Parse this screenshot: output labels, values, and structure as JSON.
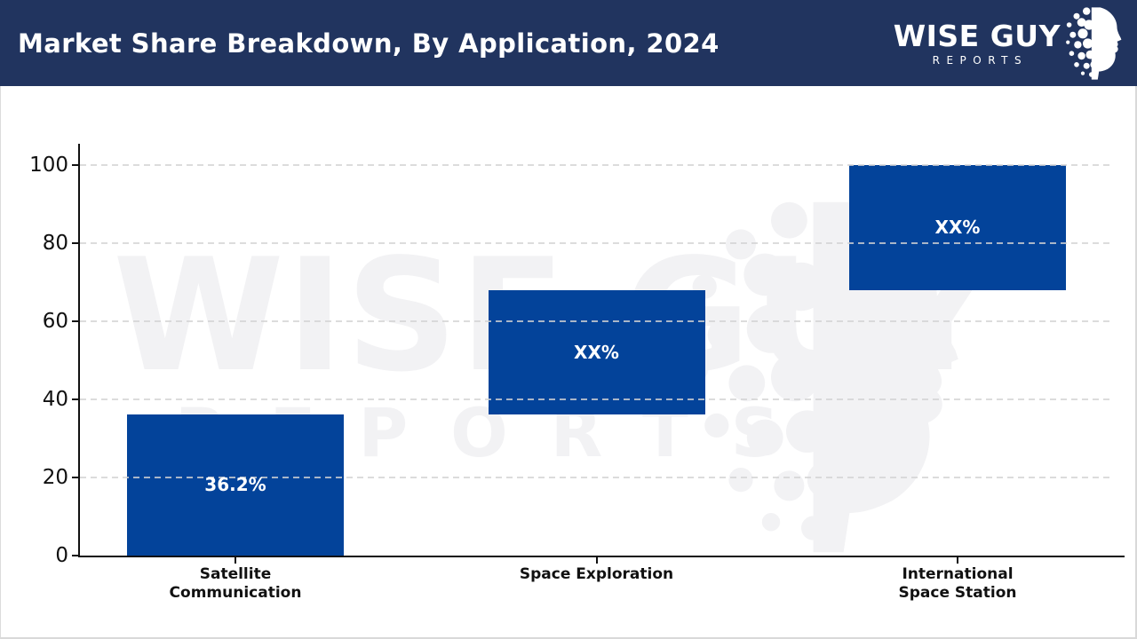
{
  "header": {
    "title": "Market Share Breakdown, By Application, 2024",
    "logo": {
      "name": "WISE GUY",
      "subtitle": "REPORTS"
    }
  },
  "watermark": {
    "name": "WISE GUY",
    "subtitle": "REPORTS"
  },
  "chart_data": {
    "type": "bar",
    "subtype": "floating-waterfall-bars",
    "title": "Market Share Breakdown, By Application, 2024",
    "categories": [
      "Satellite Communication",
      "Space Exploration",
      "International Space Station"
    ],
    "category_label_lines": [
      [
        "Satellite",
        "Communication"
      ],
      [
        "Space Exploration"
      ],
      [
        "International",
        "Space Station"
      ]
    ],
    "segments": [
      {
        "category": "Satellite Communication",
        "start": 0,
        "end": 36.2,
        "label": "36.2%"
      },
      {
        "category": "Space Exploration",
        "start": 36.2,
        "end": 68,
        "label": "XX%"
      },
      {
        "category": "International Space Station",
        "start": 68,
        "end": 100,
        "label": "XX%"
      }
    ],
    "ylim": [
      0,
      105
    ],
    "yticks": [
      0,
      20,
      40,
      60,
      80,
      100
    ],
    "grid": "horizontal-dashed",
    "legend": "none",
    "bar_color": "#03439a",
    "bar_label_color": "#ffffff",
    "axis_color": "#111111",
    "gridline_color": "#d3d3d3",
    "header_bg": "#21345f",
    "watermark_color": "#f2f2f4"
  }
}
